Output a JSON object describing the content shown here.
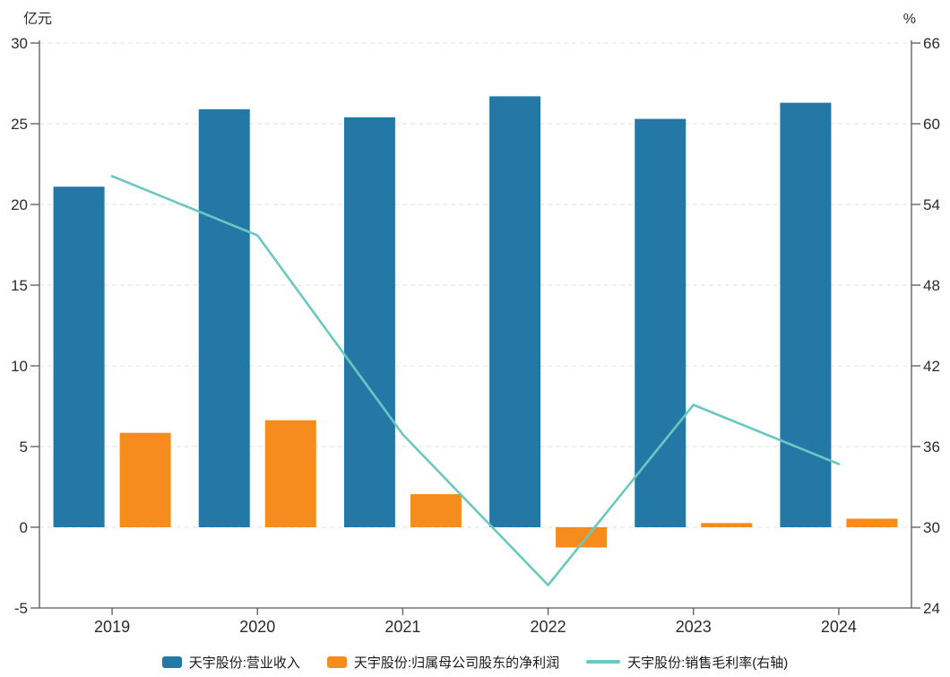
{
  "chart_data": {
    "type": "combo-bar-line",
    "categories": [
      "2019",
      "2020",
      "2021",
      "2022",
      "2023",
      "2024"
    ],
    "series": [
      {
        "name": "天宇股份:营业收入",
        "type": "bar",
        "axis": "left",
        "color": "#2478A6",
        "values": [
          21.1,
          25.9,
          25.4,
          26.7,
          25.3,
          26.3
        ]
      },
      {
        "name": "天宇股份:归属母公司股东的净利润",
        "type": "bar",
        "axis": "left",
        "color": "#F78C1E",
        "values": [
          5.85,
          6.63,
          2.05,
          -1.25,
          0.26,
          0.53
        ]
      },
      {
        "name": "天宇股份:销售毛利率(右轴)",
        "type": "line",
        "axis": "right",
        "color": "#6BC7C1",
        "values": [
          56.1,
          51.7,
          36.9,
          25.7,
          39.1,
          34.7
        ]
      }
    ],
    "left_axis": {
      "label": "亿元",
      "min": -5,
      "max": 30,
      "ticks": [
        30,
        25,
        20,
        15,
        10,
        5,
        0,
        -5
      ]
    },
    "right_axis": {
      "label": "%",
      "min": 24,
      "max": 66,
      "ticks": [
        66,
        60,
        54,
        48,
        42,
        36,
        30,
        24
      ]
    },
    "grid": "horizontal-dashed",
    "legend_position": "bottom-center",
    "colors": {
      "grid_line": "#E1E1E1",
      "axis_line": "#58595B",
      "tick_text": "#2b2b2b",
      "background": "#FFFFFF"
    }
  }
}
